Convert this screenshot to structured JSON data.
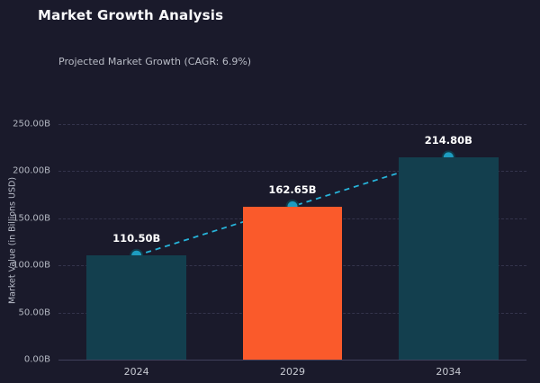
{
  "header": {
    "title": "Market Growth Analysis",
    "subtitle": "Projected Market Growth (CAGR: 6.9%)"
  },
  "chart_data": {
    "type": "bar",
    "title": "Market Growth Analysis",
    "subtitle": "Projected Market Growth (CAGR: 6.9%)",
    "categories": [
      "2024",
      "2029",
      "2034"
    ],
    "values": [
      110.5,
      162.65,
      214.8
    ],
    "value_labels": [
      "110.50B",
      "162.65B",
      "214.80B"
    ],
    "bar_colors": [
      "#133f4e",
      "#fa5a2b",
      "#133f4e"
    ],
    "xlabel": "",
    "ylabel": "Market Value (in Billions USD)",
    "ylim": [
      0,
      250
    ],
    "ytick_labels": [
      "0.00B",
      "50.00B",
      "100.00B",
      "150.00B",
      "200.00B",
      "250.00B"
    ],
    "grid": true,
    "trendline": {
      "style": "dashed",
      "color": "#27b3d9",
      "dot_color": "#1d9cc0",
      "dot_edge_color": "#0f3b4a"
    },
    "colors": {
      "background": "#1a1a2b",
      "text": "#ffffff",
      "muted_text": "#b9bcc6",
      "grid": "#34344c"
    }
  }
}
